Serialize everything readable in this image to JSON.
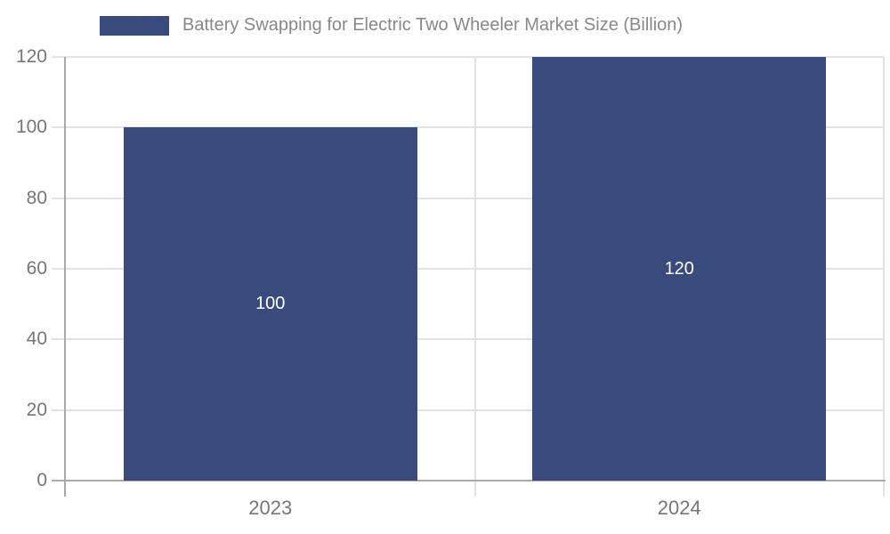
{
  "legend": {
    "label": "Battery Swapping for Electric Two Wheeler Market Size (Billion)"
  },
  "chart_data": {
    "type": "bar",
    "title": "Battery Swapping for Electric Two Wheeler Market Size (Billion)",
    "categories": [
      "2023",
      "2024"
    ],
    "values": [
      100,
      120
    ],
    "bar_labels": [
      "100",
      "120"
    ],
    "xlabel": "",
    "ylabel": "",
    "ylim": [
      0,
      120
    ],
    "yticks": [
      0,
      20,
      40,
      60,
      80,
      100,
      120
    ],
    "grid": "horizontal gridlines every 20, vertical gridlines at category boundaries",
    "legend_position": "top",
    "colors": {
      "bar": "#394A7D",
      "axis": "#A9A9A9",
      "grid": "#E2E2E2",
      "tick_label": "#767676",
      "legend_text": "#888888",
      "bar_label": "#FFFFFF",
      "background": "#FFFFFF"
    }
  }
}
